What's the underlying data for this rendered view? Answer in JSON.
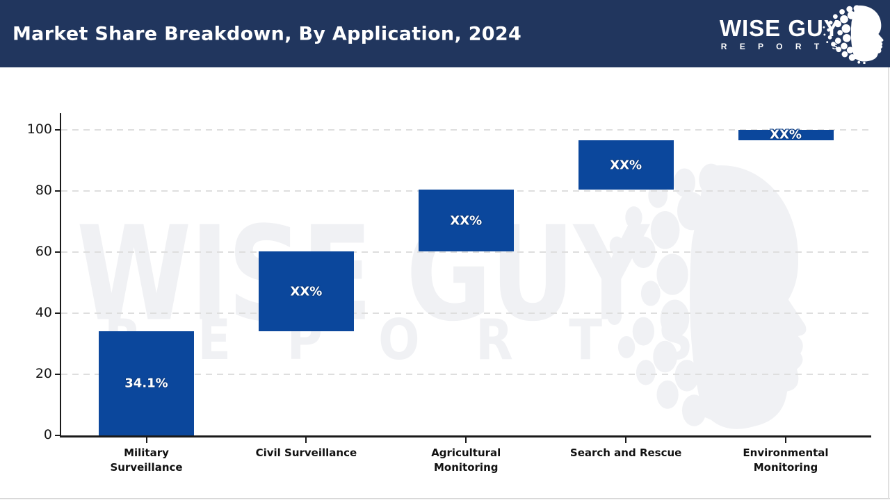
{
  "header": {
    "title": "Market Share Breakdown, By Application, 2024",
    "bg_color": "#21365e",
    "logo": {
      "name": "WISE GUY",
      "subtitle": "R E P O R T S"
    }
  },
  "watermark": {
    "line1": "WISE GUY",
    "line2": "R E P O R T S"
  },
  "chart_data": {
    "type": "bar",
    "subtype": "waterfall",
    "title": "Market Share Breakdown, By Application, 2024",
    "ylabel": "",
    "xlabel": "",
    "unit": "% market share",
    "categories": [
      "Military\nSurveillance",
      "Civil Surveillance",
      "Agricultural\nMonitoring",
      "Search and Rescue",
      "Environmental\nMonitoring"
    ],
    "segments": [
      {
        "category": "Military Surveillance",
        "start": 0,
        "end": 34.1,
        "label": "34.1%"
      },
      {
        "category": "Civil Surveillance",
        "start": 34.1,
        "end": 60.2,
        "label": "XX%"
      },
      {
        "category": "Agricultural Monitoring",
        "start": 60.2,
        "end": 80.4,
        "label": "XX%"
      },
      {
        "category": "Search and Rescue",
        "start": 80.4,
        "end": 96.6,
        "label": "XX%"
      },
      {
        "category": "Environmental Monitoring",
        "start": 96.6,
        "end": 100,
        "label": "XX%"
      }
    ],
    "ylim": [
      0,
      105
    ],
    "yticks": [
      0,
      20,
      40,
      60,
      80,
      100
    ],
    "grid": {
      "axis": "y",
      "style": "dashed",
      "color": "#dedede"
    },
    "bar_color": "#0b479c",
    "bar_label_color": "#ffffff",
    "legend": null
  }
}
